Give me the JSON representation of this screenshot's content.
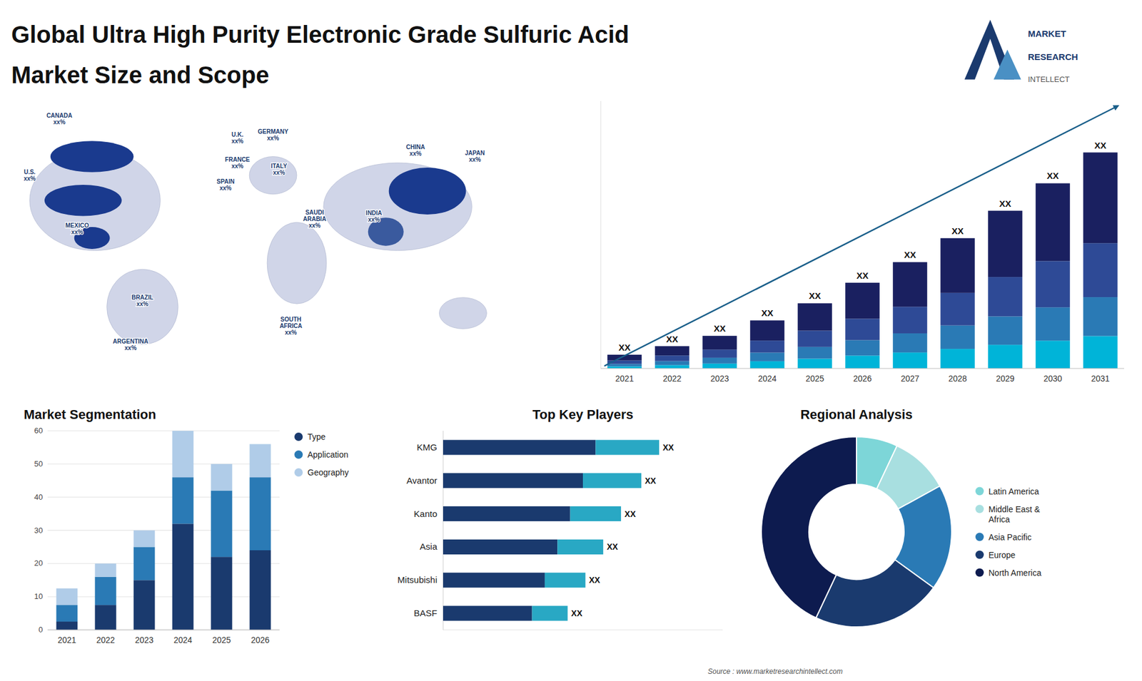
{
  "chart_data": [
    {
      "type": "bar",
      "title": "Global Ultra High Purity Electronic Grade Sulfuric Acid",
      "subtitle": "Market Size and Scope",
      "categories": [
        "2021",
        "2022",
        "2023",
        "2024",
        "2025",
        "2026",
        "2027",
        "2028",
        "2029",
        "2030",
        "2031"
      ],
      "series": [
        {
          "color": "#00b4d8",
          "values": [
            0.6,
            0.975,
            1.425,
            2.1,
            2.85,
            3.75,
            4.65,
            5.7,
            6.9,
            8.1,
            9.45
          ]
        },
        {
          "color": "#2a7ab5",
          "values": [
            0.72,
            1.17,
            1.71,
            2.52,
            3.42,
            4.5,
            5.58,
            6.84,
            8.28,
            9.72,
            11.34
          ]
        },
        {
          "color": "#2e4a96",
          "values": [
            1,
            1.625,
            2.375,
            3.5,
            4.75,
            6.25,
            7.75,
            9.5,
            11.5,
            13.5,
            15.75
          ]
        },
        {
          "color": "#1a2060",
          "values": [
            1.68,
            2.73,
            3.99,
            5.88,
            7.98,
            10.5,
            13.02,
            15.96,
            19.32,
            22.68,
            26.46
          ]
        }
      ],
      "stacked": true,
      "ylim": [
        0,
        78
      ],
      "tick_labels": "x",
      "annotations": [
        "XX",
        "XX",
        "XX",
        "XX",
        "XX",
        "XX",
        "XX",
        "XX",
        "XX",
        "XX",
        "XX"
      ]
    },
    {
      "type": "bar",
      "title": "Market Segmentation",
      "categories": [
        "2021",
        "2022",
        "2023",
        "2024",
        "2025",
        "2026"
      ],
      "series": [
        {
          "name": "Type",
          "color": "#1a3a6e",
          "values": [
            2.5,
            7.5,
            15,
            32,
            22,
            24
          ]
        },
        {
          "name": "Application",
          "color": "#2a7ab5",
          "values": [
            5,
            8.5,
            10,
            14,
            20,
            22
          ]
        },
        {
          "name": "Geography",
          "color": "#b0cce8",
          "values": [
            5,
            4,
            5,
            14,
            8,
            10
          ]
        }
      ],
      "stacked": true,
      "ylim": [
        0,
        60
      ],
      "yticks": [
        0,
        10,
        20,
        30,
        40,
        50,
        60
      ],
      "grid": true,
      "legend": "right"
    },
    {
      "type": "bar",
      "title": "Top Key Players",
      "orientation": "horizontal",
      "categories": [
        "KMG",
        "Avantor",
        "Kanto",
        "Asia",
        "Mitsubishi",
        "BASF"
      ],
      "series": [
        {
          "color": "#1a3a6e",
          "values": [
            6.0,
            5.5,
            5.0,
            4.5,
            4.0,
            3.5
          ]
        },
        {
          "color": "#29a8c4",
          "values": [
            2.5,
            2.3,
            2.0,
            1.8,
            1.6,
            1.4
          ]
        }
      ],
      "stacked": true,
      "xlim": [
        0,
        11
      ],
      "tick_labels": "y",
      "annotations": [
        "XX",
        "XX",
        "XX",
        "XX",
        "XX",
        "XX"
      ]
    },
    {
      "type": "pie",
      "title": "Regional Analysis",
      "categories": [
        "Latin America",
        "Middle East &\nAfrica",
        "Asia Pacific",
        "Europe",
        "North America"
      ],
      "values": [
        7,
        10,
        18,
        22,
        43
      ],
      "colors": [
        "#7dd6d8",
        "#a8dfe0",
        "#2a7ab5",
        "#1a3a6e",
        "#0d1b4f"
      ],
      "legend": "right",
      "annotations": [
        "Source : www.marketresearchintellect.com"
      ]
    },
    {
      "type": "map",
      "annotations": [
        "CANADA\nxx%",
        "U.S.\nxx%",
        "MEXICO\nxx%",
        "BRAZIL\nxx%",
        "ARGENTINA\nxx%",
        "U.K.\nxx%",
        "FRANCE\nxx%",
        "SPAIN\nxx%",
        "GERMANY\nxx%",
        "ITALY\nxx%",
        "SAUDI\nARABIA\nxx%",
        "SOUTH\nAFRICA\nxx%",
        "CHINA\nxx%",
        "INDIA\nxx%",
        "JAPAN\nxx%"
      ]
    },
    {
      "type": "logo",
      "annotations": [
        "MARKET",
        "RESEARCH",
        "INTELLECT"
      ]
    }
  ]
}
